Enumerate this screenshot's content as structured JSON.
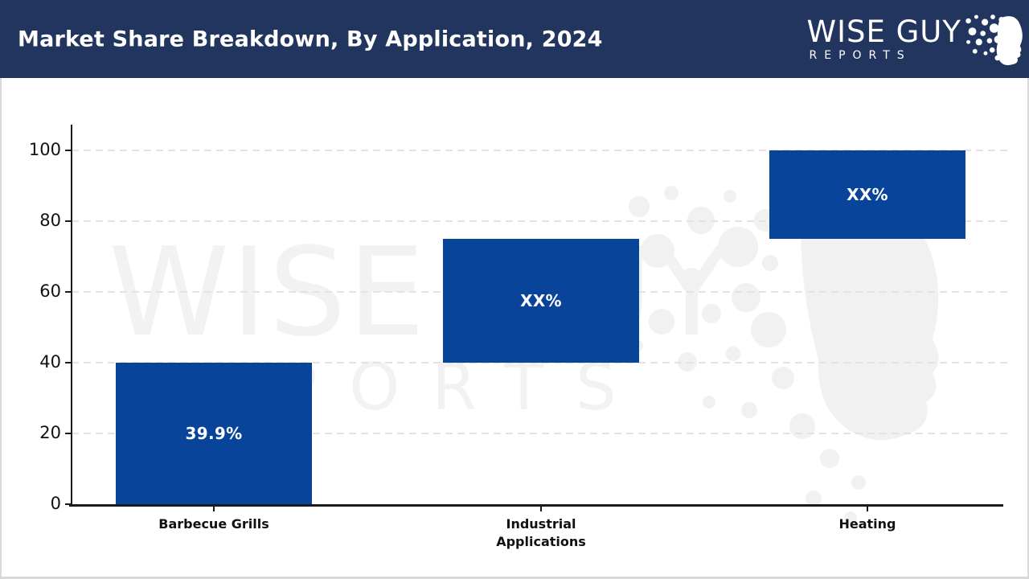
{
  "header": {
    "title": "Market Share Breakdown, By Application, 2024"
  },
  "logo": {
    "line1": "WISE GUY",
    "line2": "REPORTS"
  },
  "watermark": {
    "line1": "WISE GUY",
    "line2": "REPORTS"
  },
  "colors": {
    "header_bg": "#21355F",
    "watermark": "#f2f2f2",
    "axis": "#1a1a1a"
  },
  "chart_data": {
    "type": "bar",
    "variant": "waterfall",
    "title": "Market Share Breakdown, By Application, 2024",
    "categories": [
      "Barbecue Grills",
      "Industrial Applications",
      "Heating"
    ],
    "segments": [
      {
        "category": "Barbecue Grills",
        "start": 0,
        "end": 39.9,
        "label": "39.9%"
      },
      {
        "category": "Industrial Applications",
        "start": 39.9,
        "end": 75,
        "label": "XX%"
      },
      {
        "category": "Heating",
        "start": 75,
        "end": 100,
        "label": "XX%"
      }
    ],
    "ylim": [
      0,
      100
    ],
    "yticks": [
      0,
      20,
      40,
      60,
      80,
      100
    ],
    "bar_color": "#08459A",
    "bar_label_color": "#ffffff",
    "grid": {
      "orientation": "horizontal",
      "style": "dashed",
      "color": "#e3e3e3"
    },
    "legend": "none"
  }
}
